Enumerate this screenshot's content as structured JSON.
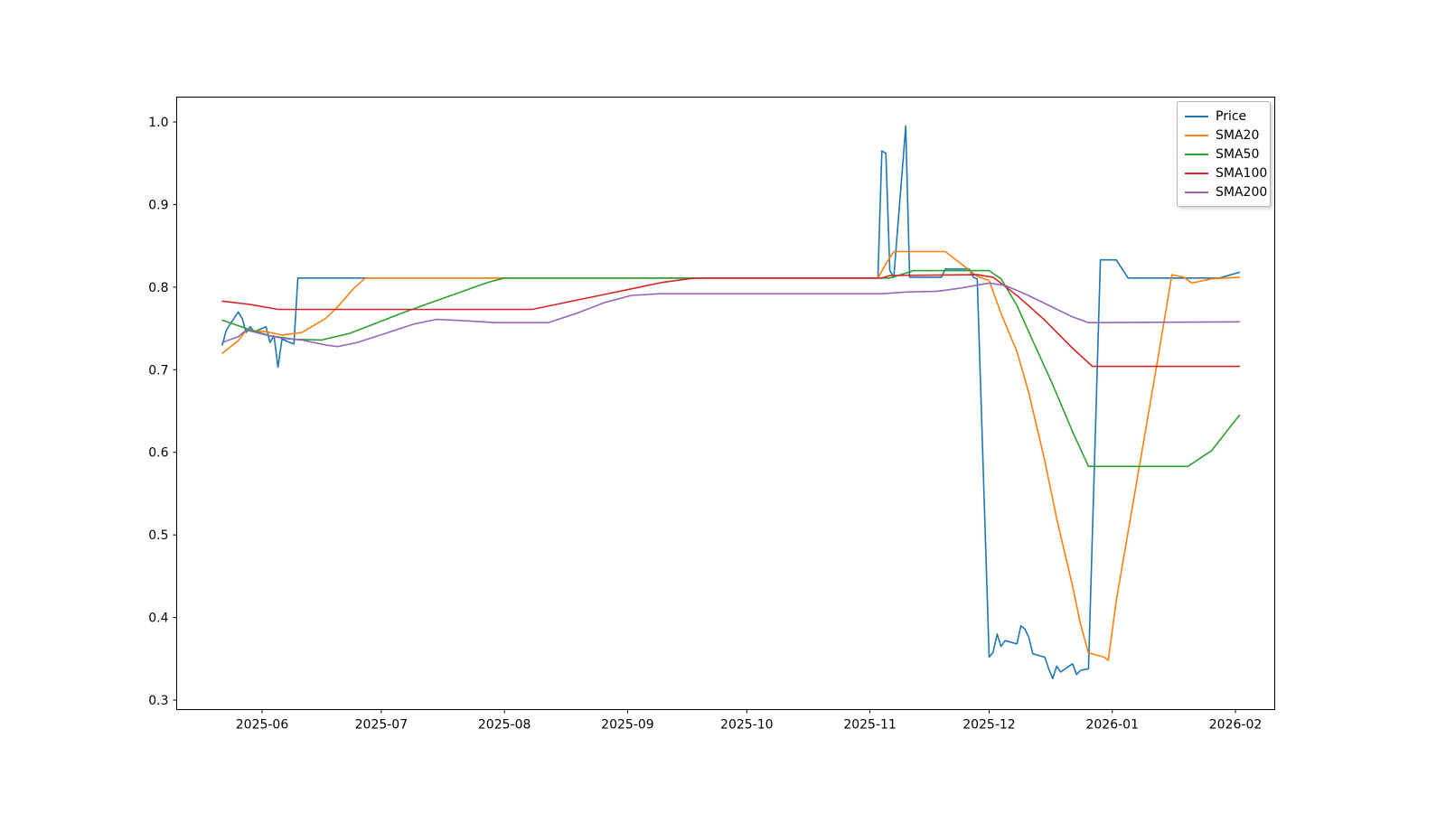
{
  "figure": {
    "background_color": "#ffffff"
  },
  "chart_data": {
    "type": "line",
    "title": "",
    "xlabel": "",
    "ylabel": "",
    "grid": false,
    "legend": {
      "position": "upper right",
      "entries": [
        "Price",
        "SMA20",
        "SMA50",
        "SMA100",
        "SMA200"
      ]
    },
    "x_axis": {
      "ticks": [
        "2025-06",
        "2025-07",
        "2025-08",
        "2025-09",
        "2025-10",
        "2025-11",
        "2025-12",
        "2026-01",
        "2026-02"
      ]
    },
    "y_axis": {
      "ticks": [
        "0.3",
        "0.4",
        "0.5",
        "0.6",
        "0.7",
        "0.8",
        "0.9",
        "1.0"
      ],
      "min": 0.3,
      "max": 1.0
    },
    "series": [
      {
        "name": "Price",
        "color": "#1f77b4",
        "points": [
          [
            "2025-05-22",
            0.73
          ],
          [
            "2025-05-23",
            0.748
          ],
          [
            "2025-05-26",
            0.77
          ],
          [
            "2025-05-27",
            0.762
          ],
          [
            "2025-05-28",
            0.745
          ],
          [
            "2025-05-29",
            0.752
          ],
          [
            "2025-05-30",
            0.746
          ],
          [
            "2025-06-02",
            0.752
          ],
          [
            "2025-06-03",
            0.733
          ],
          [
            "2025-06-04",
            0.741
          ],
          [
            "2025-06-05",
            0.703
          ],
          [
            "2025-06-06",
            0.737
          ],
          [
            "2025-06-09",
            0.731
          ],
          [
            "2025-06-10",
            0.811
          ],
          [
            "2025-11-03",
            0.811
          ],
          [
            "2025-11-04",
            0.965
          ],
          [
            "2025-11-05",
            0.962
          ],
          [
            "2025-11-06",
            0.82
          ],
          [
            "2025-11-07",
            0.812
          ],
          [
            "2025-11-10",
            0.995
          ],
          [
            "2025-11-11",
            0.812
          ],
          [
            "2025-11-19",
            0.812
          ],
          [
            "2025-11-20",
            0.822
          ],
          [
            "2025-11-26",
            0.822
          ],
          [
            "2025-11-27",
            0.812
          ],
          [
            "2025-11-28",
            0.81
          ],
          [
            "2025-12-01",
            0.352
          ],
          [
            "2025-12-02",
            0.358
          ],
          [
            "2025-12-03",
            0.38
          ],
          [
            "2025-12-04",
            0.365
          ],
          [
            "2025-12-05",
            0.372
          ],
          [
            "2025-12-08",
            0.368
          ],
          [
            "2025-12-09",
            0.39
          ],
          [
            "2025-12-10",
            0.386
          ],
          [
            "2025-12-11",
            0.376
          ],
          [
            "2025-12-12",
            0.356
          ],
          [
            "2025-12-15",
            0.352
          ],
          [
            "2025-12-16",
            0.338
          ],
          [
            "2025-12-17",
            0.326
          ],
          [
            "2025-12-18",
            0.341
          ],
          [
            "2025-12-19",
            0.334
          ],
          [
            "2025-12-22",
            0.344
          ],
          [
            "2025-12-23",
            0.331
          ],
          [
            "2025-12-24",
            0.336
          ],
          [
            "2025-12-26",
            0.338
          ],
          [
            "2025-12-29",
            0.833
          ],
          [
            "2026-01-02",
            0.833
          ],
          [
            "2026-01-05",
            0.811
          ],
          [
            "2026-01-28",
            0.811
          ],
          [
            "2026-02-02",
            0.818
          ]
        ]
      },
      {
        "name": "SMA20",
        "color": "#ff7f0e",
        "points": [
          [
            "2025-05-22",
            0.72
          ],
          [
            "2025-05-26",
            0.735
          ],
          [
            "2025-05-28",
            0.748
          ],
          [
            "2025-06-02",
            0.746
          ],
          [
            "2025-06-06",
            0.742
          ],
          [
            "2025-06-11",
            0.745
          ],
          [
            "2025-06-17",
            0.762
          ],
          [
            "2025-06-20",
            0.776
          ],
          [
            "2025-06-24",
            0.798
          ],
          [
            "2025-06-27",
            0.811
          ],
          [
            "2025-11-03",
            0.811
          ],
          [
            "2025-11-05",
            0.828
          ],
          [
            "2025-11-07",
            0.843
          ],
          [
            "2025-11-20",
            0.843
          ],
          [
            "2025-11-24",
            0.828
          ],
          [
            "2025-11-28",
            0.813
          ],
          [
            "2025-12-01",
            0.808
          ],
          [
            "2025-12-04",
            0.768
          ],
          [
            "2025-12-08",
            0.722
          ],
          [
            "2025-12-11",
            0.672
          ],
          [
            "2025-12-15",
            0.59
          ],
          [
            "2025-12-18",
            0.52
          ],
          [
            "2025-12-22",
            0.438
          ],
          [
            "2025-12-24",
            0.392
          ],
          [
            "2025-12-26",
            0.357
          ],
          [
            "2025-12-30",
            0.352
          ],
          [
            "2025-12-31",
            0.348
          ],
          [
            "2026-01-02",
            0.42
          ],
          [
            "2026-01-07",
            0.56
          ],
          [
            "2026-01-12",
            0.7
          ],
          [
            "2026-01-16",
            0.815
          ],
          [
            "2026-01-19",
            0.812
          ],
          [
            "2026-01-21",
            0.805
          ],
          [
            "2026-01-26",
            0.81
          ],
          [
            "2026-02-02",
            0.812
          ]
        ]
      },
      {
        "name": "SMA50",
        "color": "#2ca02c",
        "points": [
          [
            "2025-05-22",
            0.76
          ],
          [
            "2025-05-28",
            0.75
          ],
          [
            "2025-06-03",
            0.741
          ],
          [
            "2025-06-09",
            0.737
          ],
          [
            "2025-06-16",
            0.736
          ],
          [
            "2025-06-23",
            0.744
          ],
          [
            "2025-06-30",
            0.757
          ],
          [
            "2025-07-07",
            0.77
          ],
          [
            "2025-07-14",
            0.782
          ],
          [
            "2025-07-21",
            0.794
          ],
          [
            "2025-07-28",
            0.806
          ],
          [
            "2025-08-01",
            0.811
          ],
          [
            "2025-11-06",
            0.811
          ],
          [
            "2025-11-12",
            0.82
          ],
          [
            "2025-12-01",
            0.82
          ],
          [
            "2025-12-04",
            0.81
          ],
          [
            "2025-12-08",
            0.778
          ],
          [
            "2025-12-12",
            0.735
          ],
          [
            "2025-12-17",
            0.682
          ],
          [
            "2025-12-22",
            0.625
          ],
          [
            "2025-12-26",
            0.583
          ],
          [
            "2026-01-20",
            0.583
          ],
          [
            "2026-01-26",
            0.602
          ],
          [
            "2026-02-02",
            0.645
          ]
        ]
      },
      {
        "name": "SMA100",
        "color": "#d62728",
        "points": [
          [
            "2025-05-22",
            0.783
          ],
          [
            "2025-05-29",
            0.779
          ],
          [
            "2025-06-05",
            0.773
          ],
          [
            "2025-08-08",
            0.773
          ],
          [
            "2025-08-15",
            0.78
          ],
          [
            "2025-08-25",
            0.79
          ],
          [
            "2025-09-03",
            0.799
          ],
          [
            "2025-09-10",
            0.806
          ],
          [
            "2025-09-18",
            0.811
          ],
          [
            "2025-11-04",
            0.811
          ],
          [
            "2025-11-06",
            0.814
          ],
          [
            "2025-11-28",
            0.815
          ],
          [
            "2025-12-02",
            0.812
          ],
          [
            "2025-12-08",
            0.79
          ],
          [
            "2025-12-15",
            0.76
          ],
          [
            "2025-12-22",
            0.726
          ],
          [
            "2025-12-27",
            0.704
          ],
          [
            "2026-02-02",
            0.704
          ]
        ]
      },
      {
        "name": "SMA200",
        "color": "#9467bd",
        "points": [
          [
            "2025-05-22",
            0.733
          ],
          [
            "2025-05-26",
            0.74
          ],
          [
            "2025-05-28",
            0.748
          ],
          [
            "2025-06-02",
            0.742
          ],
          [
            "2025-06-06",
            0.738
          ],
          [
            "2025-06-11",
            0.736
          ],
          [
            "2025-06-17",
            0.73
          ],
          [
            "2025-06-20",
            0.728
          ],
          [
            "2025-06-25",
            0.733
          ],
          [
            "2025-07-02",
            0.744
          ],
          [
            "2025-07-09",
            0.755
          ],
          [
            "2025-07-15",
            0.761
          ],
          [
            "2025-07-23",
            0.759
          ],
          [
            "2025-07-30",
            0.757
          ],
          [
            "2025-08-12",
            0.757
          ],
          [
            "2025-08-19",
            0.768
          ],
          [
            "2025-08-26",
            0.781
          ],
          [
            "2025-09-02",
            0.79
          ],
          [
            "2025-09-09",
            0.792
          ],
          [
            "2025-11-04",
            0.792
          ],
          [
            "2025-11-10",
            0.794
          ],
          [
            "2025-11-18",
            0.795
          ],
          [
            "2025-11-24",
            0.799
          ],
          [
            "2025-12-01",
            0.805
          ],
          [
            "2025-12-05",
            0.802
          ],
          [
            "2025-12-10",
            0.792
          ],
          [
            "2025-12-16",
            0.778
          ],
          [
            "2025-12-22",
            0.764
          ],
          [
            "2025-12-26",
            0.757
          ],
          [
            "2026-02-02",
            0.758
          ]
        ]
      }
    ]
  }
}
